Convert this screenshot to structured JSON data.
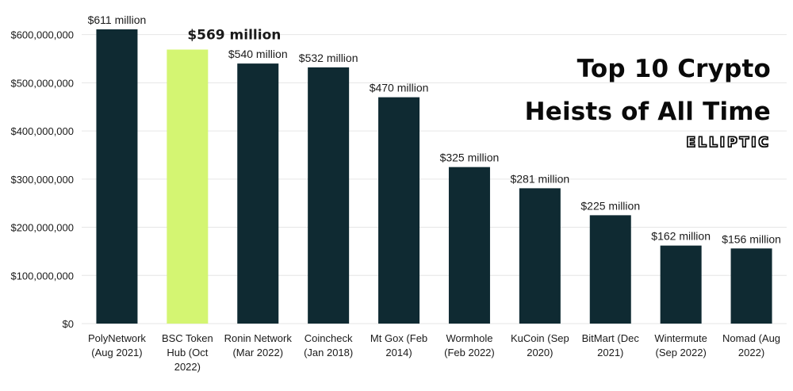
{
  "chart_data": {
    "type": "bar",
    "title": "Top 10 Crypto Heists of All Time",
    "title_lines": [
      "Top 10 Crypto",
      "Heists of All Time"
    ],
    "brand": "ELLIPTIC",
    "categories": [
      [
        "PolyNetwork",
        "(Aug 2021)"
      ],
      [
        "BSC Token",
        "Hub (Oct",
        "2022)"
      ],
      [
        "Ronin Network",
        "(Mar 2022)"
      ],
      [
        "Coincheck",
        "(Jan 2018)"
      ],
      [
        "Mt Gox (Feb",
        "2014)"
      ],
      [
        "Wormhole",
        "(Feb 2022)"
      ],
      [
        "KuCoin (Sep",
        "2020)"
      ],
      [
        "BitMart (Dec",
        "2021)"
      ],
      [
        "Wintermute",
        "(Sep 2022)"
      ],
      [
        "Nomad (Aug",
        "2022)"
      ]
    ],
    "values": [
      611000000,
      569000000,
      540000000,
      532000000,
      470000000,
      325000000,
      281000000,
      225000000,
      162000000,
      156000000
    ],
    "data_labels": [
      "$611 million",
      "$569 million",
      "$540 million",
      "$532 million",
      "$470 million",
      "$325 million",
      "$281 million",
      "$225 million",
      "$162 million",
      "$156 million"
    ],
    "highlight_index": 1,
    "yticks": [
      0,
      100000000,
      200000000,
      300000000,
      400000000,
      500000000,
      600000000
    ],
    "ytick_labels": [
      "$0",
      "$100,000,000",
      "$200,000,000",
      "$300,000,000",
      "$400,000,000",
      "$500,000,000",
      "$600,000,000"
    ],
    "ylim": [
      0,
      611000000
    ],
    "grid": true,
    "colors": {
      "bar": "#0f2a32",
      "highlight": "#d4f572",
      "grid": "#e6e6e6",
      "text": "#1a1a1a"
    }
  }
}
